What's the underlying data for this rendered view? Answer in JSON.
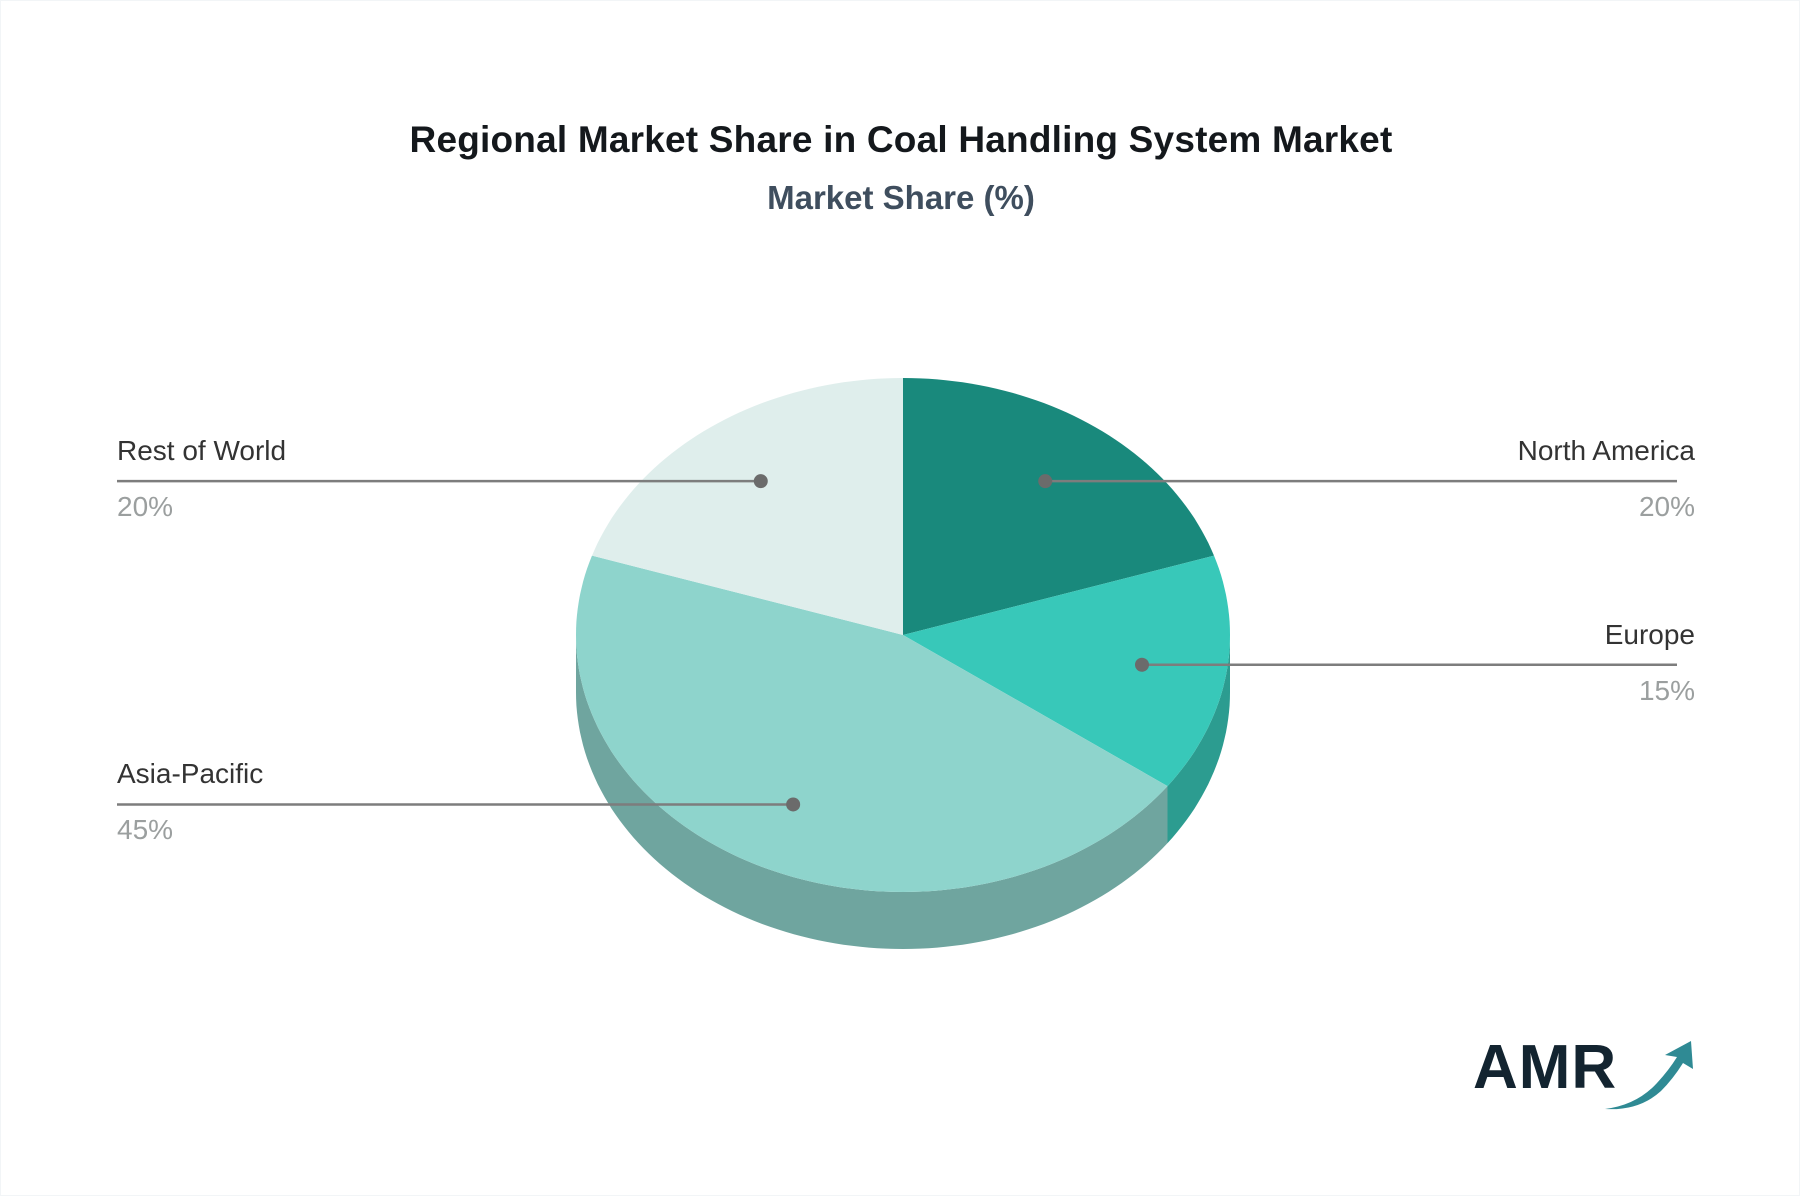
{
  "header": {
    "title": "Regional Market Share in Coal Handling System Market",
    "subtitle": "Market Share (%)"
  },
  "chart_data": {
    "type": "pie",
    "title": "Regional Market Share in Coal Handling System Market",
    "subtitle": "Market Share (%)",
    "unit": "%",
    "effect": "3d",
    "start_angle_deg": 0,
    "direction": "clockwise",
    "legend_position": "none",
    "segments": [
      {
        "label": "North America",
        "value": 20,
        "pct_label": "20%",
        "color": "#19897C",
        "label_side": "right"
      },
      {
        "label": "Europe",
        "value": 15,
        "pct_label": "15%",
        "color": "#38C8B9",
        "label_side": "right"
      },
      {
        "label": "Asia-Pacific",
        "value": 45,
        "pct_label": "45%",
        "color": "#8ED4CC",
        "label_side": "left"
      },
      {
        "label": "Rest of World",
        "value": 20,
        "pct_label": "20%",
        "color": "#DFEEEC",
        "label_side": "left"
      }
    ],
    "callout_style": {
      "line_color": "#7D7D7D",
      "dot_color": "#6B6B6B",
      "label_color": "#333333",
      "pct_color": "#9B9F9F"
    }
  },
  "logo": {
    "text": "AMR",
    "arrow_icon": "growth-arrow-icon",
    "text_color": "#132430",
    "arrow_color": "#2F8A94"
  }
}
